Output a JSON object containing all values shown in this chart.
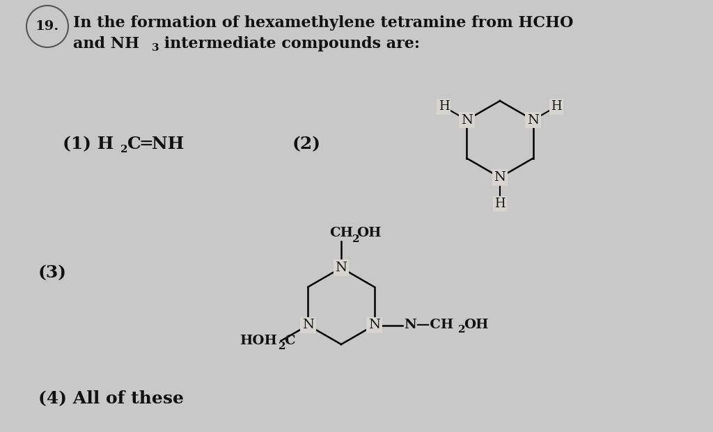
{
  "bg_color": "#c8c8c8",
  "paper_color": "#d8d5d0",
  "text_color": "#111111",
  "font_size": 16,
  "font_size_sub": 11,
  "font_size_label": 16,
  "title_line1": "In the formation of hexamethylene tetramine from HCHO",
  "title_line2": "and NH",
  "title_line2b": " intermediate compounds are:",
  "nh3_sub": "3",
  "opt1": "(1) H",
  "opt1_sub": "2",
  "opt1b": "C═NH",
  "opt2": "(2)",
  "opt3": "(3)",
  "opt4": "(4) All of these"
}
